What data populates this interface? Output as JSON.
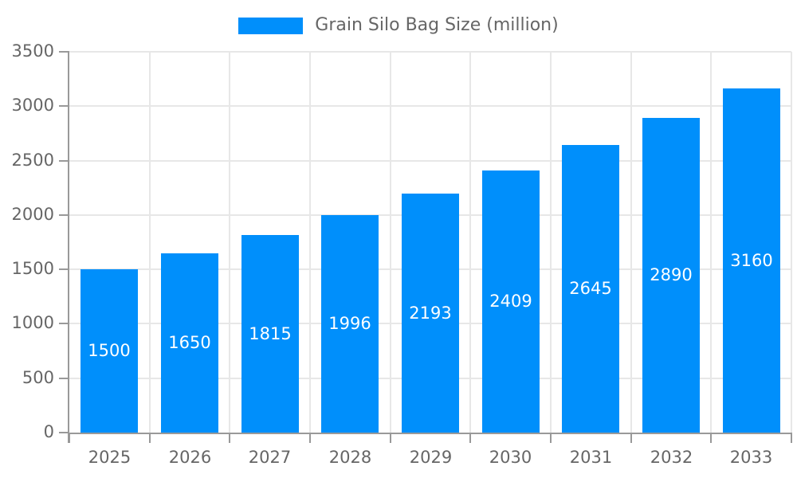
{
  "chart_data": {
    "type": "bar",
    "title": "Grain Silo Bag Size (million)",
    "categories": [
      "2025",
      "2026",
      "2027",
      "2028",
      "2029",
      "2030",
      "2031",
      "2032",
      "2033"
    ],
    "values": [
      1500,
      1650,
      1815,
      1996,
      2193,
      2409,
      2645,
      2890,
      3160
    ],
    "series_name": "Grain Silo Bag Size (million)",
    "xlabel": "",
    "ylabel": "",
    "ylim": [
      0,
      3500
    ],
    "ytick_step": 500,
    "grid": true,
    "legend_position": "top",
    "data_labels": "inside-center",
    "colors": {
      "bar": "#008ffb",
      "data_label": "#ffffff",
      "axis_text": "#666666",
      "axis_line": "#999999",
      "gridline": "#e7e7e7",
      "background": "#ffffff"
    }
  }
}
